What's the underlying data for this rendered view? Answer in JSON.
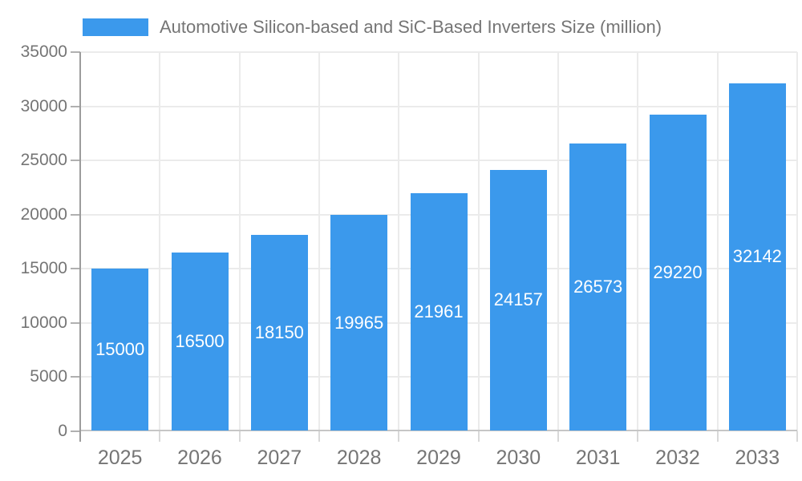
{
  "chart_data": {
    "type": "bar",
    "title": "",
    "legend": {
      "label": "Automotive Silicon-based and SiC-Based Inverters Size (million)",
      "position": "top-left"
    },
    "categories": [
      "2025",
      "2026",
      "2027",
      "2028",
      "2029",
      "2030",
      "2031",
      "2032",
      "2033"
    ],
    "series": [
      {
        "name": "Automotive Silicon-based and SiC-Based Inverters Size (million)",
        "values": [
          15000,
          16500,
          18150,
          19965,
          21961,
          24157,
          26573,
          29220,
          32142
        ]
      }
    ],
    "value_labels": [
      "15000",
      "16500",
      "18150",
      "19965",
      "21961",
      "24157",
      "26573",
      "29220",
      "32142"
    ],
    "xlabel": "",
    "ylabel": "",
    "ylim": [
      0,
      35000
    ],
    "ytick_step": 5000,
    "yticks": [
      0,
      5000,
      10000,
      15000,
      20000,
      25000,
      30000,
      35000
    ],
    "grid": true,
    "colors": {
      "bar": "#3B99EC",
      "bar_value_text": "#ffffff",
      "axis_text": "#757575",
      "gridline": "#ebebeb",
      "axis_line": "#9c9c9c"
    }
  }
}
